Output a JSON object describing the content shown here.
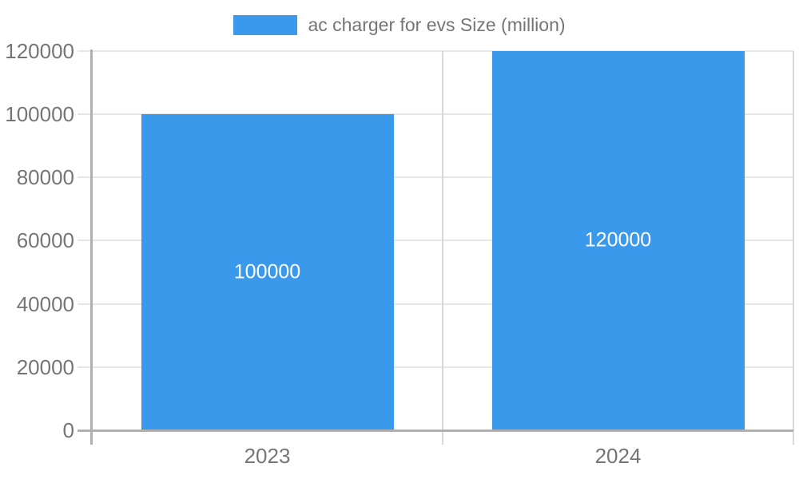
{
  "chart_data": {
    "type": "bar",
    "title": "",
    "legend": {
      "position": "top",
      "label": "ac charger for evs Size (million)"
    },
    "categories": [
      "2023",
      "2024"
    ],
    "series": [
      {
        "name": "ac charger for evs Size (million)",
        "values": [
          100000,
          120000
        ]
      }
    ],
    "bar_value_labels": [
      "100000",
      "120000"
    ],
    "ylim": [
      0,
      120000
    ],
    "yticks": [
      0,
      20000,
      40000,
      60000,
      80000,
      100000,
      120000
    ],
    "ytick_labels": [
      "0",
      "20000",
      "40000",
      "60000",
      "80000",
      "100000",
      "120000"
    ],
    "grid": true,
    "colors": {
      "bar": "#3b99ec",
      "gridline": "#e6e6e6",
      "category_gridline": "#d9d9d9",
      "axis_line": "#b0b0b0",
      "tick_text": "#757575",
      "bar_label_text": "#ffffff",
      "background": "#ffffff"
    }
  }
}
